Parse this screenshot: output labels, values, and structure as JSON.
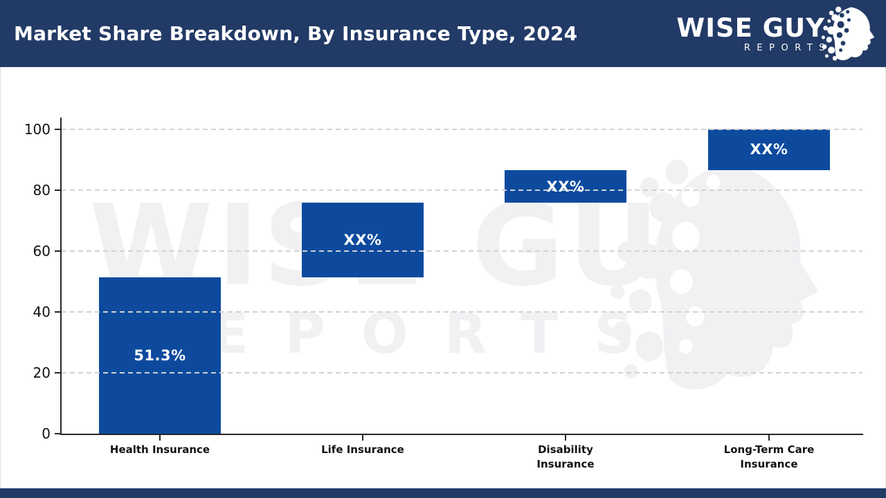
{
  "header": {
    "title": "Market Share Breakdown, By Insurance Type, 2024",
    "logo": {
      "line1": "WISE GUY",
      "line2": "REPORTS"
    }
  },
  "watermark": {
    "line1": "WISE GUY",
    "line2": "REPORTS"
  },
  "footer": {},
  "colors": {
    "header_bg": "#223A66",
    "footer_bg": "#223A66",
    "bar": "#0D4A9E",
    "grid": "#D2D2D2",
    "axis": "#262626",
    "bar_label_text": "#FFFFFF",
    "watermark": "#F1F1F4"
  },
  "chart_data": {
    "type": "bar",
    "subtype": "floating-waterfall",
    "title": "Market Share Breakdown, By Insurance Type, 2024",
    "categories": [
      "Health Insurance",
      "Life Insurance",
      "Disability Insurance",
      "Long-Term Care Insurance"
    ],
    "tick_labels": [
      "Health Insurance",
      "Life Insurance",
      "Disability\nInsurance",
      "Long-Term Care\nInsurance"
    ],
    "bars": [
      {
        "category": "Health Insurance",
        "start": 0,
        "end": 51.3,
        "label": "51.3%"
      },
      {
        "category": "Life Insurance",
        "start": 51.3,
        "end": 75.8,
        "label": "XX%"
      },
      {
        "category": "Disability Insurance",
        "start": 75.8,
        "end": 86.6,
        "label": "XX%"
      },
      {
        "category": "Long-Term Care Insurance",
        "start": 86.6,
        "end": 100,
        "label": "XX%"
      }
    ],
    "xlabel": "",
    "ylabel": "",
    "ylim": [
      0,
      100
    ],
    "yticks": [
      0,
      20,
      40,
      60,
      80,
      100
    ],
    "grid": "horizontal-dashed-on-top",
    "legend_position": "none"
  }
}
